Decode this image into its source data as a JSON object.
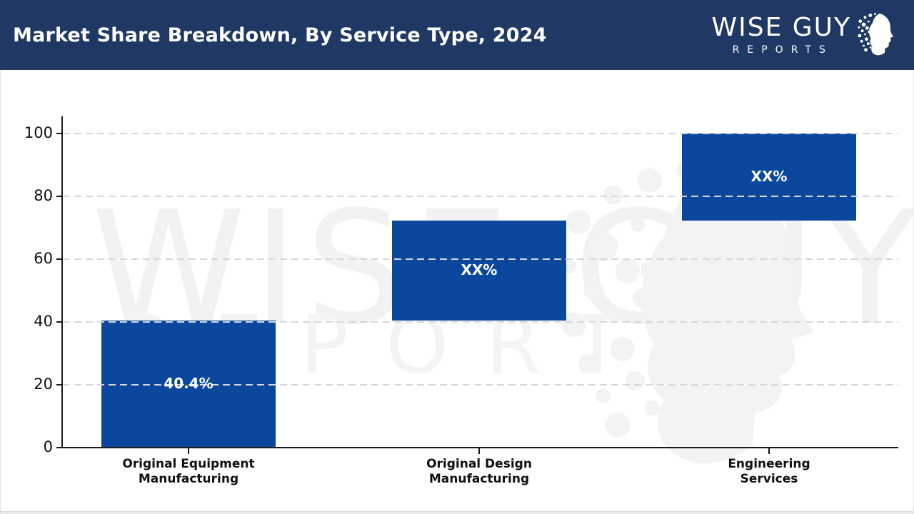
{
  "header": {
    "title": "Market Share Breakdown, By Service Type, 2024"
  },
  "brand": {
    "name": "WISE GUY",
    "subtitle": "REPORTS",
    "face_icon": "wiseguy-face-icon"
  },
  "colors": {
    "header_bg": "#1f3864",
    "bar": "#0b479d",
    "grid": "#d7d7d7",
    "axis": "#1a1a1a",
    "watermark": "#f2f2f4",
    "bar_label_text": "#ffffff",
    "title_text": "#ffffff"
  },
  "chart_data": {
    "type": "bar",
    "subtype": "stacked-waterfall",
    "title": "Market Share Breakdown, By Service Type, 2024",
    "categories": [
      "Original Equipment Manufacturing",
      "Original Design Manufacturing",
      "Engineering Services"
    ],
    "bars": [
      {
        "category": "Original Equipment Manufacturing",
        "start": 0,
        "end": 40.4,
        "label": "40.4%"
      },
      {
        "category": "Original Design Manufacturing",
        "start": 40.4,
        "end": 72.3,
        "label": "XX%"
      },
      {
        "category": "Engineering Services",
        "start": 72.3,
        "end": 100,
        "label": "XX%"
      }
    ],
    "yticks": [
      0,
      20,
      40,
      60,
      80,
      100
    ],
    "ylim": [
      0,
      105
    ],
    "xlabel": "",
    "ylabel": "",
    "grid": "dashed-horizontal",
    "legend": null
  }
}
